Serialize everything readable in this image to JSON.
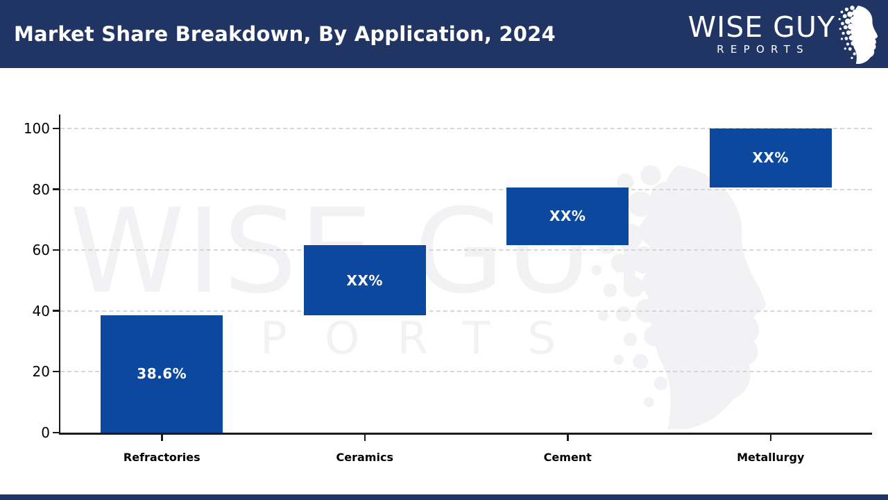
{
  "header": {
    "title": "Market Share Breakdown, By Application, 2024",
    "logo": {
      "line1": "WISE GUY",
      "line2": "REPORTS"
    }
  },
  "watermark": {
    "line1": "WISE GUY",
    "line2": "REPORTS"
  },
  "footer": {},
  "colors": {
    "header_bg": "#213564",
    "bar": "#0c489e",
    "bar_label": "#ffffff",
    "gridline": "#d6d6d6",
    "axis": "#1a1a1a",
    "watermark": "#f2f2f4"
  },
  "chart_data": {
    "type": "bar",
    "variant": "waterfall",
    "title": "Market Share Breakdown, By Application, 2024",
    "categories": [
      "Refractories",
      "Ceramics",
      "Cement",
      "Metallurgy"
    ],
    "segments": [
      {
        "category": "Refractories",
        "start": 0,
        "end": 38.6,
        "label": "38.6%"
      },
      {
        "category": "Ceramics",
        "start": 38.6,
        "end": 61.6,
        "label": "XX%"
      },
      {
        "category": "Cement",
        "start": 61.6,
        "end": 80.7,
        "label": "XX%"
      },
      {
        "category": "Metallurgy",
        "start": 80.7,
        "end": 100,
        "label": "XX%"
      }
    ],
    "xlabel": "",
    "ylabel": "",
    "ylim": [
      0,
      100
    ],
    "yticks": [
      0,
      20,
      40,
      60,
      80,
      100
    ],
    "grid": "horizontal-dashed",
    "legend": "none"
  }
}
